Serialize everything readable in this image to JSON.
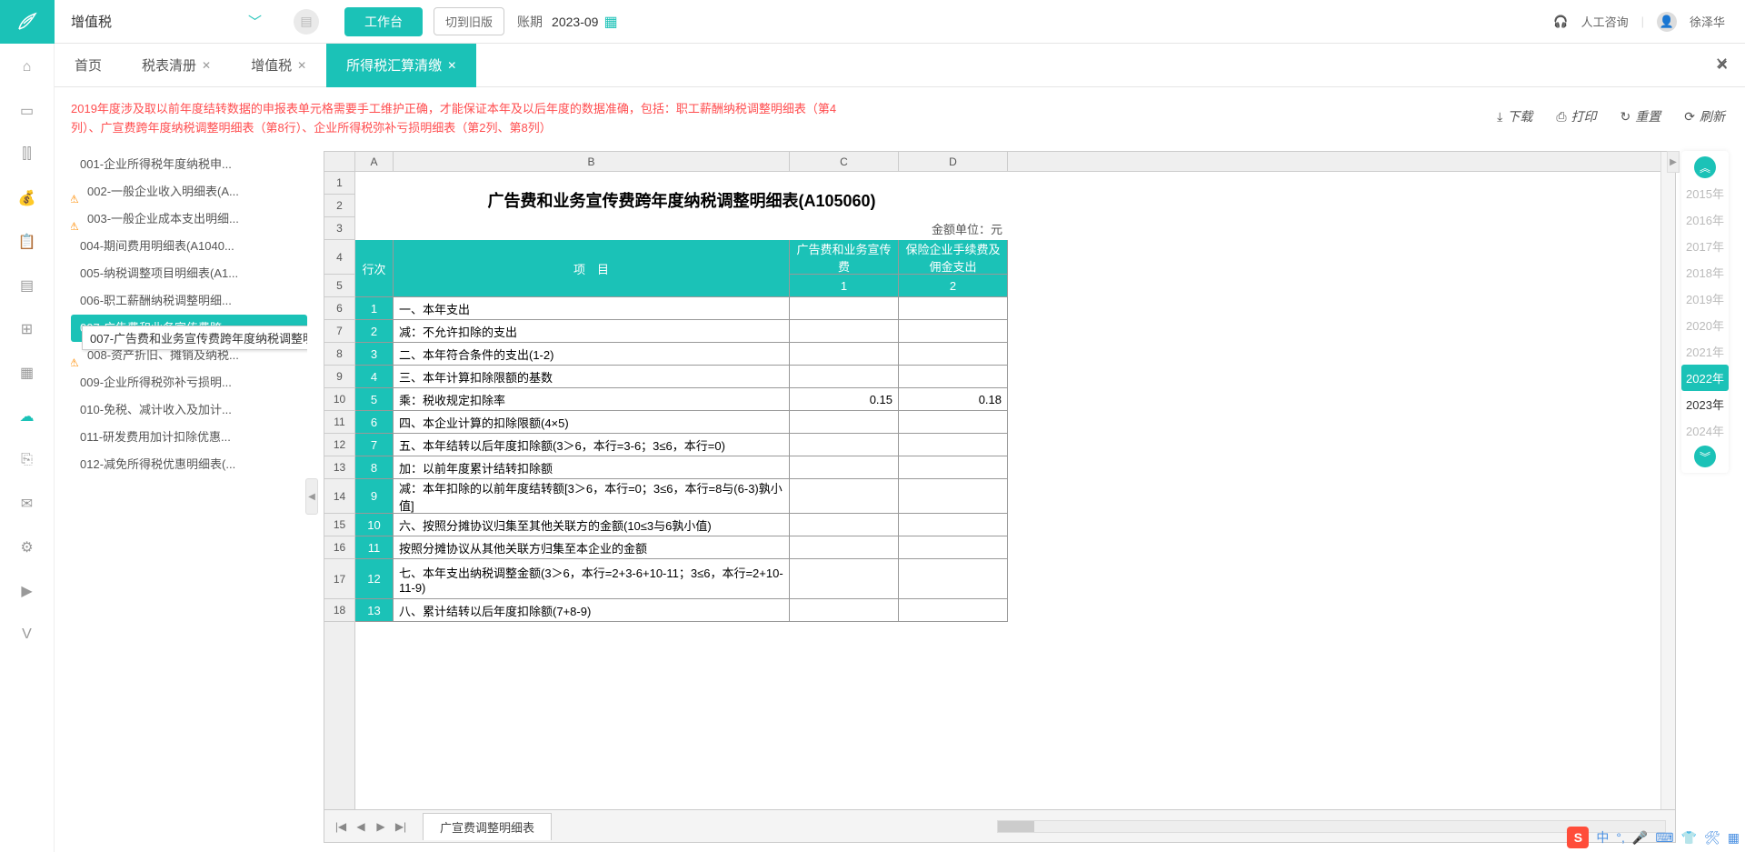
{
  "header": {
    "module": "增值税",
    "workbench_btn": "工作台",
    "switch_old_btn": "切到旧版",
    "period_label": "账期",
    "period_value": "2023-09",
    "consult": "人工咨询",
    "user_name": "徐泽华"
  },
  "tabs": [
    {
      "label": "首页",
      "closable": false,
      "active": false
    },
    {
      "label": "税表清册",
      "closable": true,
      "active": false
    },
    {
      "label": "增值税",
      "closable": true,
      "active": false
    },
    {
      "label": "所得税汇算清缴",
      "closable": true,
      "active": true
    }
  ],
  "warning_text": "2019年度涉及取以前年度结转数据的申报表单元格需要手工维护正确，才能保证本年及以后年度的数据准确，包括：职工薪酬纳税调整明细表（第4列）、广宣费跨年度纳税调整明细表（第8行）、企业所得税弥补亏损明细表（第2列、第8列）",
  "actions": {
    "download": "下载",
    "print": "打印",
    "reset": "重置",
    "refresh": "刷新"
  },
  "form_list": [
    {
      "label": "001-企业所得税年度纳税申...",
      "warn": false
    },
    {
      "label": "002-一般企业收入明细表(A...",
      "warn": true
    },
    {
      "label": "003-一般企业成本支出明细...",
      "warn": true
    },
    {
      "label": "004-期间费用明细表(A1040...",
      "warn": false
    },
    {
      "label": "005-纳税调整项目明细表(A1...",
      "warn": false
    },
    {
      "label": "006-职工薪酬纳税调整明细...",
      "warn": false
    },
    {
      "label": "007-广告费和业务宣传费跨...",
      "warn": false,
      "active": true
    },
    {
      "label": "008-资产折旧、摊销及纳税...",
      "warn": true
    },
    {
      "label": "009-企业所得税弥补亏损明...",
      "warn": false
    },
    {
      "label": "010-免税、减计收入及加计...",
      "warn": false
    },
    {
      "label": "011-研发费用加计扣除优惠...",
      "warn": false
    },
    {
      "label": "012-减免所得税优惠明细表(...",
      "warn": false
    }
  ],
  "form_tooltip": "007-广告费和业务宣传费跨年度纳税调整明细表(A105060)",
  "sheet": {
    "columns": [
      "A",
      "B",
      "C",
      "D"
    ],
    "col_widths": {
      "A": 42,
      "B": 436,
      "C": 120,
      "D": 120
    },
    "row_numbers": [
      1,
      2,
      3,
      4,
      5,
      6,
      7,
      8,
      9,
      10,
      11,
      12,
      13,
      14,
      15,
      16,
      17,
      18
    ],
    "title": "广告费和业务宣传费跨年度纳税调整明细表(A105060)",
    "unit_label": "金额单位：元",
    "head_row": {
      "a": "行次",
      "b": "项　目",
      "c": "广告费和业务宣传费",
      "d": "保险企业手续费及佣金支出"
    },
    "head_sub": {
      "c": "1",
      "d": "2"
    },
    "rows": [
      {
        "idx": "1",
        "b": "一、本年支出",
        "c": "",
        "d": ""
      },
      {
        "idx": "2",
        "b": "减：不允许扣除的支出",
        "c": "",
        "d": ""
      },
      {
        "idx": "3",
        "b": "二、本年符合条件的支出(1-2)",
        "c": "",
        "d": ""
      },
      {
        "idx": "4",
        "b": "三、本年计算扣除限额的基数",
        "c": "",
        "d": ""
      },
      {
        "idx": "5",
        "b": "乘：税收规定扣除率",
        "c": "0.15",
        "d": "0.18"
      },
      {
        "idx": "6",
        "b": "四、本企业计算的扣除限额(4×5)",
        "c": "",
        "d": ""
      },
      {
        "idx": "7",
        "b": "五、本年结转以后年度扣除额(3＞6，本行=3-6；3≤6，本行=0)",
        "c": "",
        "d": ""
      },
      {
        "idx": "8",
        "b": "加：以前年度累计结转扣除额",
        "c": "",
        "d": ""
      },
      {
        "idx": "9",
        "b": "减：本年扣除的以前年度结转额[3＞6，本行=0；3≤6，本行=8与(6-3)孰小值]",
        "c": "",
        "d": ""
      },
      {
        "idx": "10",
        "b": "六、按照分摊协议归集至其他关联方的金额(10≤3与6孰小值)",
        "c": "",
        "d": ""
      },
      {
        "idx": "11",
        "b": "按照分摊协议从其他关联方归集至本企业的金额",
        "c": "",
        "d": ""
      },
      {
        "idx": "12",
        "b": "七、本年支出纳税调整金额(3＞6，本行=2+3-6+10-11；3≤6，本行=2+10-11-9)",
        "c": "",
        "d": ""
      },
      {
        "idx": "13",
        "b": "八、累计结转以后年度扣除额(7+8-9)",
        "c": "",
        "d": ""
      }
    ],
    "row_heights": {
      "default": 25,
      "r4": 38,
      "r14": 38,
      "r17": 44
    },
    "tab_label": "广宣费调整明细表",
    "colors": {
      "header_bg": "#1bc2b7",
      "header_fg": "#ffffff",
      "border": "#999999",
      "grid_bg": "#efefef"
    }
  },
  "years": {
    "list": [
      "2015年",
      "2016年",
      "2017年",
      "2018年",
      "2019年",
      "2020年",
      "2021年",
      "2022年",
      "2023年",
      "2024年"
    ],
    "active": "2022年",
    "current": "2023年"
  },
  "ime": {
    "brand": "S",
    "lang": "中"
  }
}
